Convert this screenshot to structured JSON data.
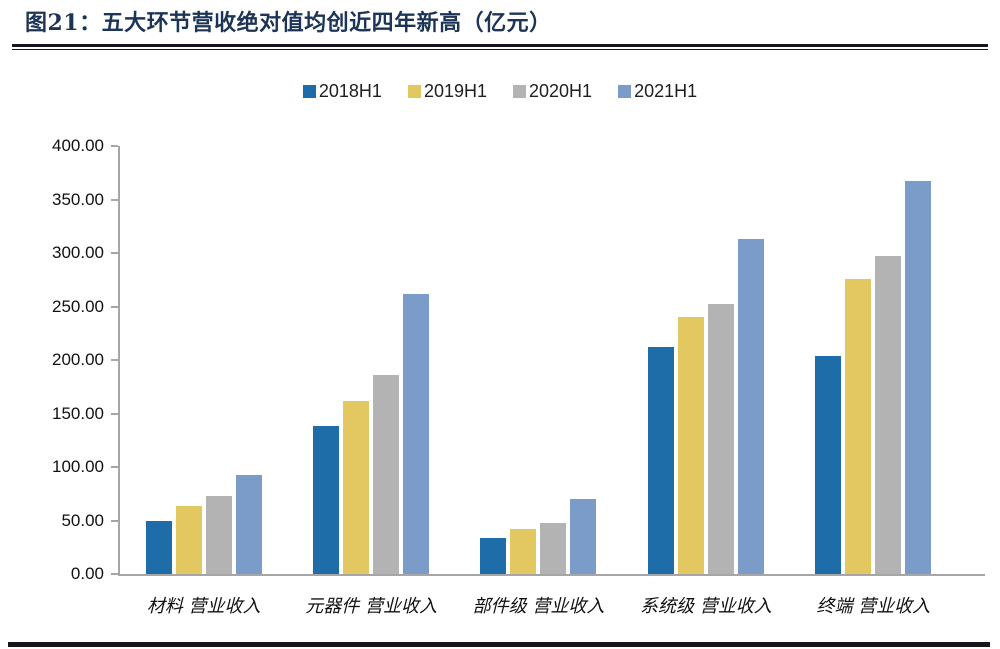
{
  "title": "图21：五大环节营收绝对值均创近四年新高（亿元）",
  "chart_data": {
    "type": "bar",
    "title": "图21：五大环节营收绝对值均创近四年新高（亿元）",
    "categories": [
      "材料 营业收入",
      "元器件 营业收入",
      "部件级 营业收入",
      "系统级 营业收入",
      "终端 营业收入"
    ],
    "series": [
      {
        "name": "2018H1",
        "color": "#1F6DA8",
        "values": [
          50,
          138,
          34,
          212,
          204
        ]
      },
      {
        "name": "2019H1",
        "color": "#E3C761",
        "values": [
          64,
          162,
          42,
          240,
          276
        ]
      },
      {
        "name": "2020H1",
        "color": "#B3B3B3",
        "values": [
          73,
          186,
          48,
          252,
          297
        ]
      },
      {
        "name": "2021H1",
        "color": "#7B9CC9",
        "values": [
          93,
          262,
          70,
          313,
          367
        ]
      }
    ],
    "ylim": [
      0,
      400
    ],
    "ytick_step": 50,
    "ytick_labels": [
      "0.00",
      "50.00",
      "100.00",
      "150.00",
      "200.00",
      "250.00",
      "300.00",
      "350.00",
      "400.00"
    ],
    "xlabel": "",
    "ylabel": "",
    "grid": false,
    "legend_position": "top"
  },
  "colors": {
    "title_text": "#1C3456",
    "rule": "#16161d",
    "axis": "#A6A6A6",
    "tick_text": "#111111",
    "legend_text": "#1f1f1f"
  }
}
